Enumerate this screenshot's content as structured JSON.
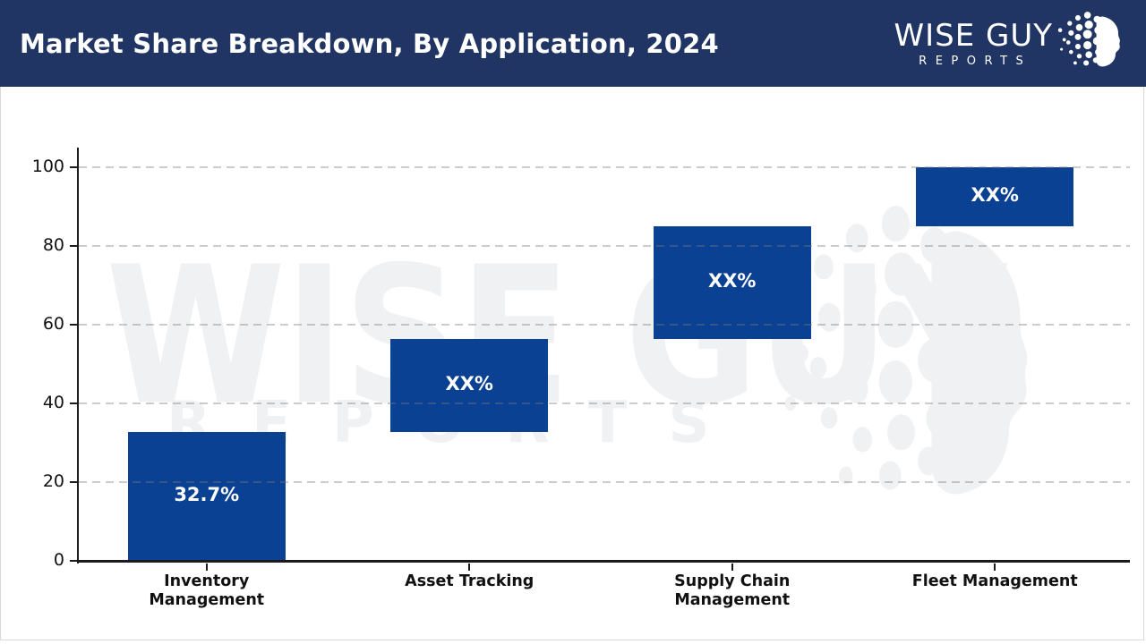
{
  "header": {
    "title": "Market Share Breakdown, By Application, 2024",
    "bg_color": "#213564",
    "logo": {
      "line1": "WISE GUY",
      "line2": "REPORTS"
    }
  },
  "watermark": {
    "line1": "WISE GUY",
    "line2": "REPORTS"
  },
  "chart_data": {
    "type": "bar",
    "variant": "waterfall",
    "title": "Market Share Breakdown, By Application, 2024",
    "xlabel": "",
    "ylabel": "",
    "ylim": [
      0,
      100
    ],
    "yticks": [
      0,
      20,
      40,
      60,
      80,
      100
    ],
    "grid": "dashed horizontal, drawn over bars",
    "bar_color": "#0b4193",
    "bar_label_color": "#ffffff",
    "categories": [
      "Inventory Management",
      "Asset Tracking",
      "Supply Chain Management",
      "Fleet Management"
    ],
    "segments": [
      {
        "label": "Inventory Management",
        "tick_lines": [
          "Inventory",
          "Management"
        ],
        "start": 0,
        "end": 32.7,
        "value": 32.7,
        "value_label": "32.7%"
      },
      {
        "label": "Asset Tracking",
        "tick_lines": [
          "Asset Tracking"
        ],
        "start": 32.7,
        "end": 56.4,
        "value": 23.7,
        "value_label": "XX%"
      },
      {
        "label": "Supply Chain Management",
        "tick_lines": [
          "Supply Chain",
          "Management"
        ],
        "start": 56.4,
        "end": 85.0,
        "value": 28.6,
        "value_label": "XX%"
      },
      {
        "label": "Fleet Management",
        "tick_lines": [
          "Fleet Management"
        ],
        "start": 85.0,
        "end": 100.0,
        "value": 15.0,
        "value_label": "XX%"
      }
    ]
  }
}
